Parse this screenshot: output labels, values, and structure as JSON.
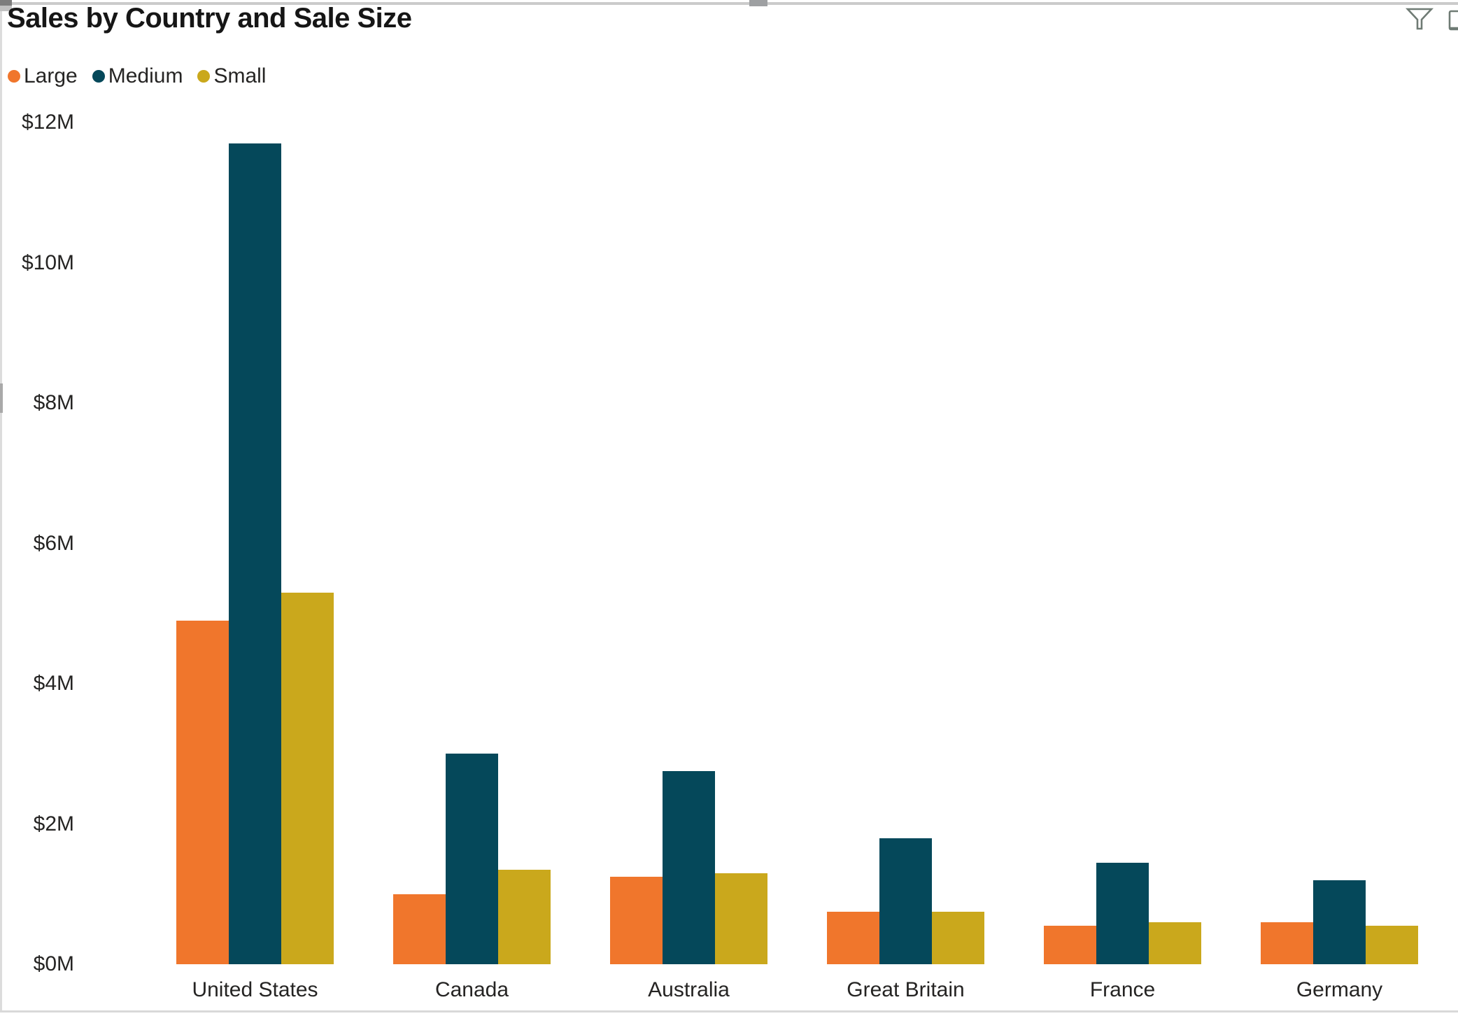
{
  "chart_data": {
    "type": "bar",
    "title": "Sales by Country and Sale Size",
    "categories": [
      "United States",
      "Canada",
      "Australia",
      "Great Britain",
      "France",
      "Germany"
    ],
    "series": [
      {
        "name": "Large",
        "color": "#F0762C",
        "values": [
          4.9,
          1.0,
          1.25,
          0.75,
          0.55,
          0.6
        ]
      },
      {
        "name": "Medium",
        "color": "#05485A",
        "values": [
          11.7,
          3.0,
          2.75,
          1.8,
          1.45,
          1.2
        ]
      },
      {
        "name": "Small",
        "color": "#CAA81C",
        "values": [
          5.3,
          1.35,
          1.3,
          0.75,
          0.6,
          0.55
        ]
      }
    ],
    "y_ticks": [
      "$12M",
      "$10M",
      "$8M",
      "$6M",
      "$4M",
      "$2M",
      "$0M"
    ],
    "ylim": [
      0,
      12
    ],
    "value_unit": "$M",
    "legend_position": "top-left",
    "grid": false
  },
  "visual_chrome": {
    "filter_icon": "funnel",
    "more_icon": "clipped-panel-icon",
    "icon_color": "#6F7B74",
    "scrollbar": {
      "top_track_color": "#CBCBCB",
      "top_thumb_color": "#9EA0A2",
      "left_track_color": "#DCDCDC",
      "left_thumb_color": "#A9A9A9"
    }
  }
}
